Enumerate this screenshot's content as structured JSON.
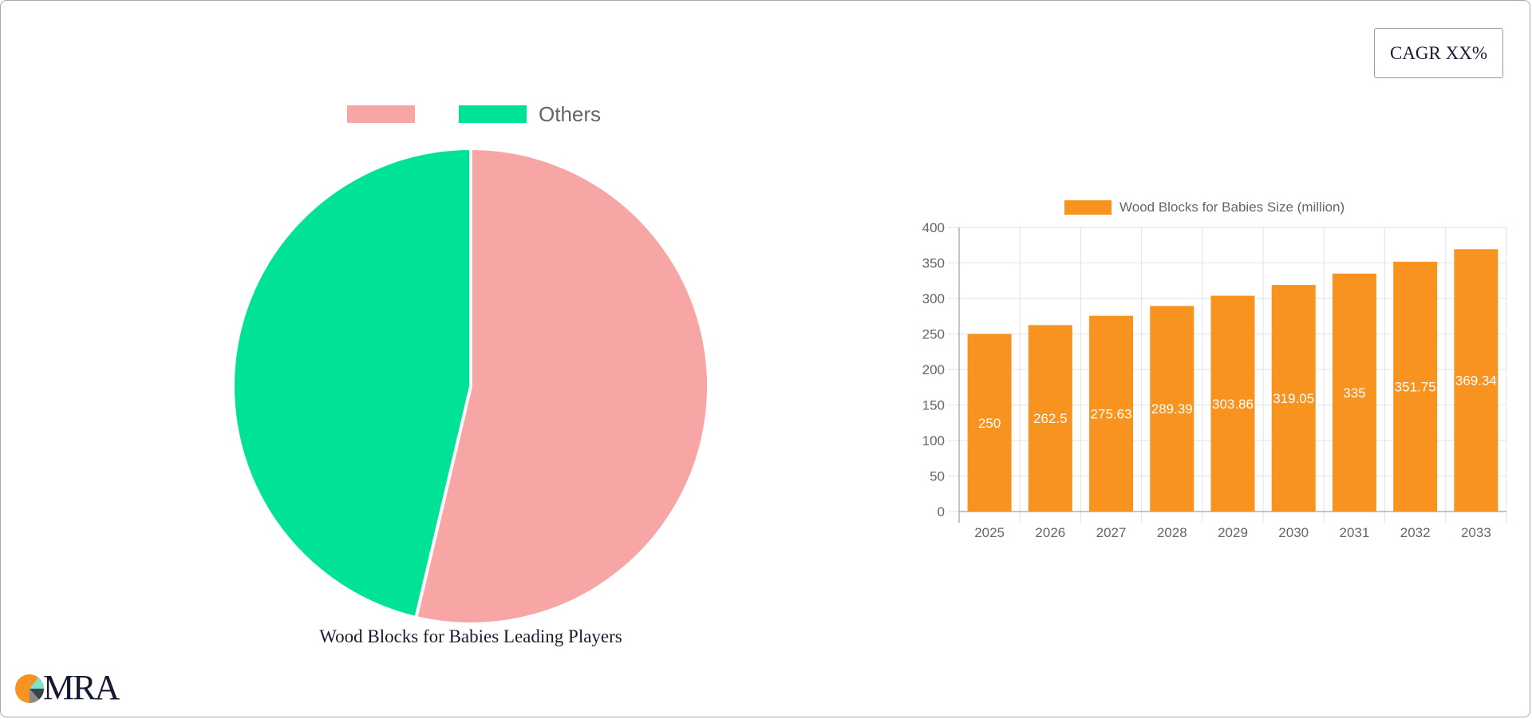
{
  "cagr": {
    "label": "CAGR XX%"
  },
  "pie": {
    "legend": [
      {
        "label": "",
        "color": "#f8a5a5"
      },
      {
        "label": "Others",
        "color": "#00e396"
      }
    ],
    "title": "Wood Blocks for Babies Leading Players"
  },
  "bar": {
    "legend_label": "Wood Blocks for Babies Size (million)",
    "color": "#f7931e"
  },
  "logo": {
    "text": "MRA"
  },
  "chart_data": [
    {
      "type": "pie",
      "title": "Wood Blocks for Babies Leading Players",
      "categories": [
        "",
        "Others"
      ],
      "values": [
        53.7,
        46.3
      ],
      "colors": [
        "#f8a5a5",
        "#00e396"
      ],
      "legend_position": "top"
    },
    {
      "type": "bar",
      "title": "",
      "categories": [
        "2025",
        "2026",
        "2027",
        "2028",
        "2029",
        "2030",
        "2031",
        "2032",
        "2033"
      ],
      "series": [
        {
          "name": "Wood Blocks for Babies Size (million)",
          "values": [
            250,
            262.5,
            275.63,
            289.39,
            303.86,
            319.05,
            335,
            351.75,
            369.34
          ],
          "color": "#f7931e"
        }
      ],
      "data_labels": [
        "250",
        "262.5",
        "275.63",
        "289.39",
        "303.86",
        "319.05",
        "335",
        "351.75",
        "369.34"
      ],
      "xlabel": "",
      "ylabel": "",
      "ylim": [
        0,
        400
      ],
      "yticks": [
        0,
        50,
        100,
        150,
        200,
        250,
        300,
        350,
        400
      ],
      "grid": true,
      "legend_position": "top"
    }
  ]
}
